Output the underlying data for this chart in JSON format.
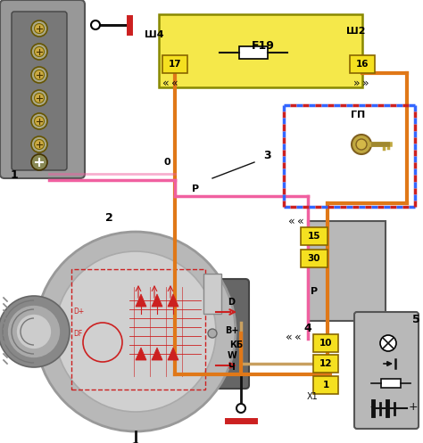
{
  "bg_color": "#ffffff",
  "orange": "#e07818",
  "pink": "#f060a0",
  "red": "#cc2020",
  "tan": "#c8a060",
  "black": "#111111",
  "yellow_face": "#f5e020",
  "yellow_edge": "#886600",
  "gray1": "#989898",
  "gray2": "#787878",
  "gray_dark": "#555555",
  "gray_light": "#b8b8b8",
  "blue": "#3366ff",
  "dashed_seg": 7,
  "labels": {
    "sh4": "Ш4",
    "sh2": "Ш2",
    "f19": "F19",
    "gp": "ГП",
    "lbl0": "0",
    "lblP1": "P",
    "lblP2": "P",
    "lbl3": "3",
    "lblD": "D",
    "lblBp": "B+",
    "lblW": "W",
    "lblKB": "КБ",
    "lblCh": "Ч",
    "lblX1": "X1",
    "lbl1": "1",
    "lbl2": "2",
    "lbl4": "4",
    "lbl5": "5",
    "b17": "17",
    "b16": "16",
    "b15": "15",
    "b30": "30",
    "b10": "10",
    "b12": "12",
    "b1": "1"
  }
}
